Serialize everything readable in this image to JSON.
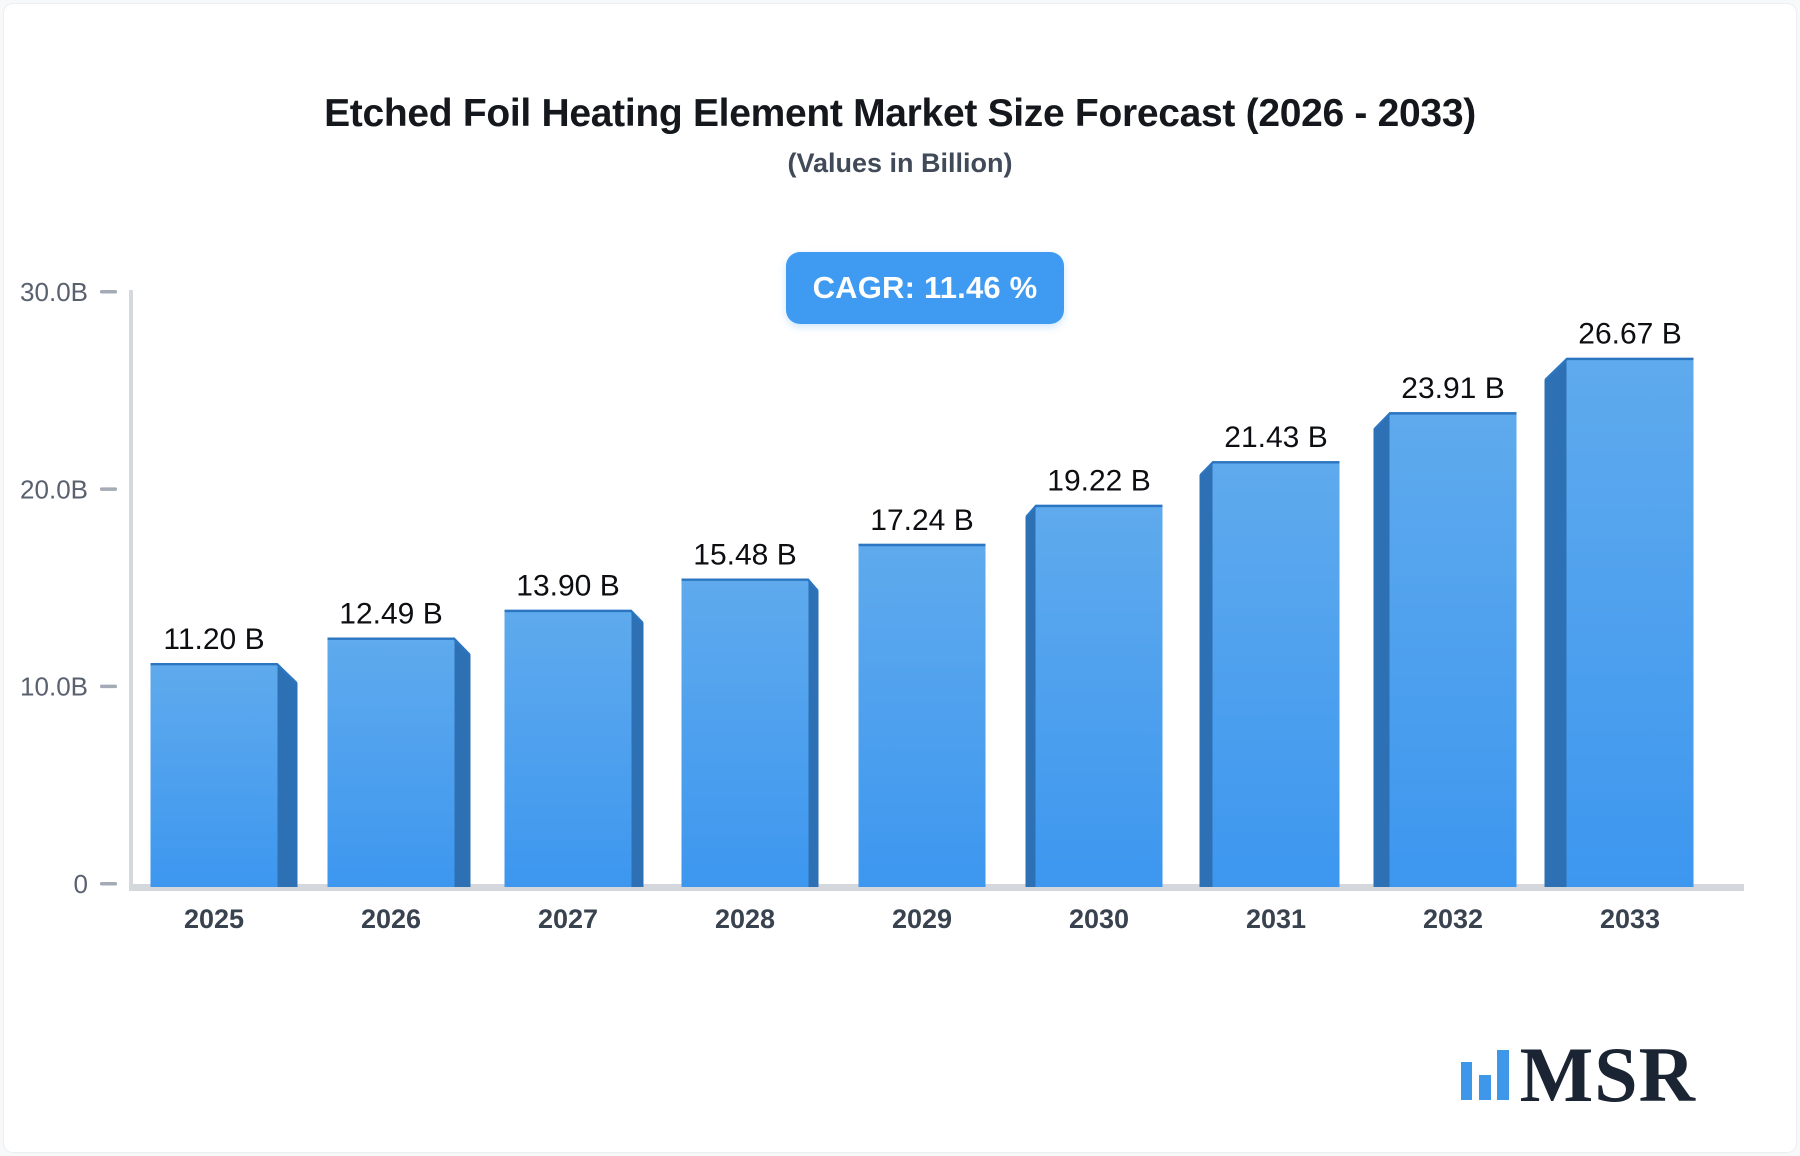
{
  "chart_data": {
    "type": "bar",
    "title": "Etched Foil Heating Element Market Size Forecast (2026 - 2033)",
    "subtitle": "(Values in Billion)",
    "annotation": "CAGR: 11.46 %",
    "categories": [
      "2025",
      "2026",
      "2027",
      "2028",
      "2029",
      "2030",
      "2031",
      "2032",
      "2033"
    ],
    "values": [
      11.2,
      12.49,
      13.9,
      15.48,
      17.24,
      19.22,
      21.43,
      23.91,
      26.67
    ],
    "value_labels": [
      "11.20 B",
      "12.49 B",
      "13.90 B",
      "15.48 B",
      "17.24 B",
      "19.22 B",
      "21.43 B",
      "23.91 B",
      "26.67 B"
    ],
    "y_tick_values": [
      0,
      10,
      20,
      30
    ],
    "y_tick_labels": [
      "0",
      "10.0B",
      "20.0B",
      "30.0B"
    ],
    "ylim": [
      0,
      30
    ],
    "grid": false,
    "legend": false,
    "style_3d": true,
    "colors": {
      "bar_top": "#5FAAED",
      "bar_bottom": "#3D97EF",
      "bar_side": "#2E70B4",
      "bar_edge": "#2C76C1",
      "axis": "#D5D8DD",
      "tick": "#A4ABB6",
      "baseline": "#D4D8DD",
      "y_label": "#59616F",
      "x_label": "#39424F",
      "value_label": "#0C0E12",
      "badge_bg": "#3E9BF1",
      "badge_text": "#FFFFFF",
      "logo_blue": "#3F97EA",
      "logo_text": "#1A2433"
    }
  },
  "branding": {
    "logo_text": "MSR"
  }
}
